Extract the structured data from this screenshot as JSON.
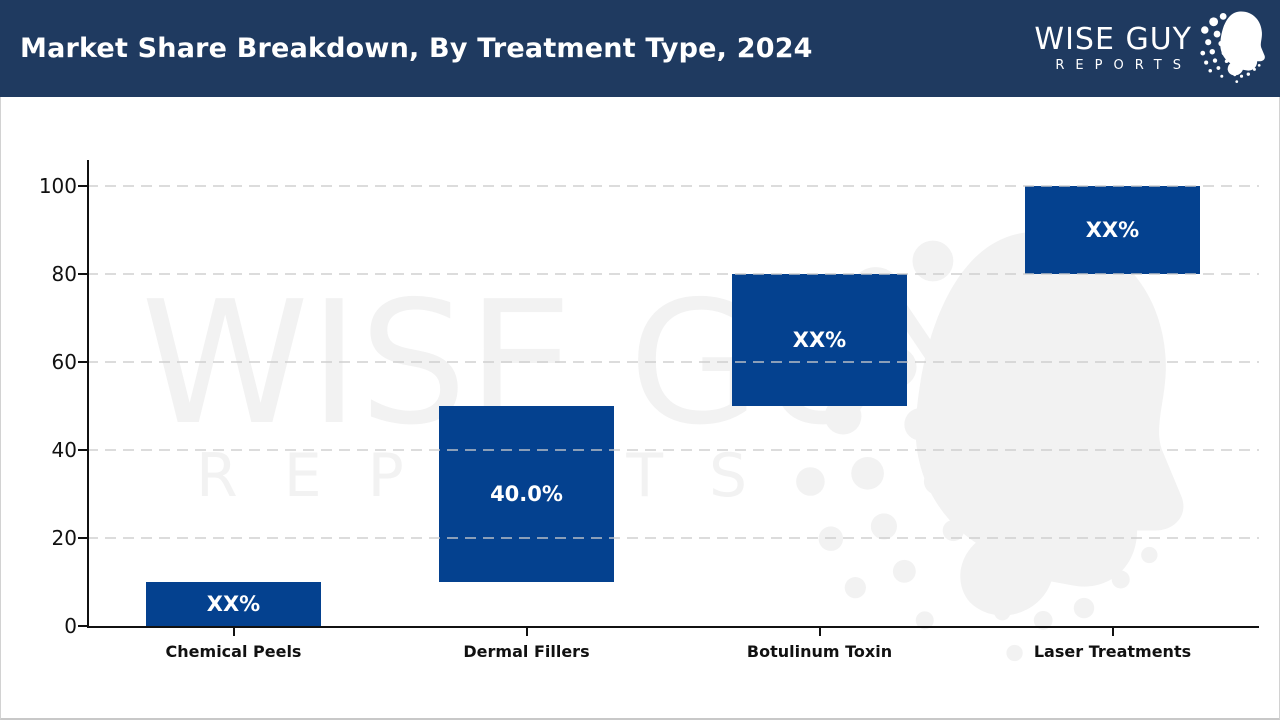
{
  "header": {
    "title": "Market Share Breakdown, By Treatment Type, 2024",
    "logo": {
      "line1": "WISE GUY",
      "line2": "REPORTS"
    }
  },
  "watermark": {
    "line1": "WISE GUY",
    "line2": "REPORTS"
  },
  "chart_data": {
    "type": "bar",
    "subtype": "waterfall",
    "title": "Market Share Breakdown, By Treatment Type, 2024",
    "categories": [
      "Chemical Peels",
      "Dermal Fillers",
      "Botulinum Toxin",
      "Laser Treatments"
    ],
    "segments": [
      {
        "category": "Chemical Peels",
        "start": 0,
        "end": 10,
        "label": "XX%"
      },
      {
        "category": "Dermal Fillers",
        "start": 10,
        "end": 50,
        "label": "40.0%"
      },
      {
        "category": "Botulinum Toxin",
        "start": 50,
        "end": 80,
        "label": "XX%"
      },
      {
        "category": "Laser Treatments",
        "start": 80,
        "end": 100,
        "label": "XX%"
      }
    ],
    "ylim": [
      0,
      100
    ],
    "yticks": [
      0,
      20,
      40,
      60,
      80,
      100
    ],
    "xlabel": "",
    "ylabel": "",
    "grid": "horizontal-dashed",
    "legend": "none"
  },
  "colors": {
    "header_bg": "#1f3a60",
    "bar": "#04418f",
    "bar_label": "#ffffff",
    "watermark": "#f2f2f2",
    "grid": "#cbcbcb",
    "axis": "#111111"
  }
}
